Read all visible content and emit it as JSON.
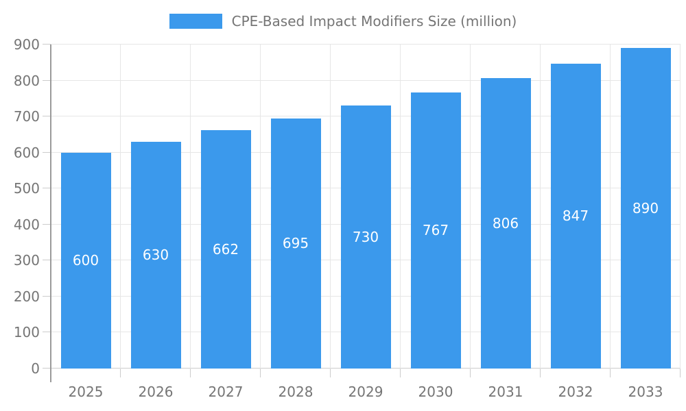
{
  "chart_data": {
    "type": "bar",
    "title": "CPE-Based Impact Modifiers Size (million)",
    "categories": [
      "2025",
      "2026",
      "2027",
      "2028",
      "2029",
      "2030",
      "2031",
      "2032",
      "2033"
    ],
    "values": [
      600,
      630,
      662,
      695,
      730,
      767,
      806,
      847,
      890
    ],
    "xlabel": "",
    "ylabel": "",
    "ylim": [
      0,
      900
    ],
    "ytick_step": 100,
    "ytick_labels": [
      "0",
      "100",
      "200",
      "300",
      "400",
      "500",
      "600",
      "700",
      "800",
      "900"
    ],
    "grid": true,
    "legend_position": "top",
    "bar_labels_shown": true,
    "colors": {
      "bar": "#3B99EC",
      "bar_label": "#FFFFFF",
      "axis_text": "#757575",
      "gridline": "#E6E6E6",
      "axis_line": "#9A9A9A",
      "tick": "#CCCCCC"
    }
  }
}
